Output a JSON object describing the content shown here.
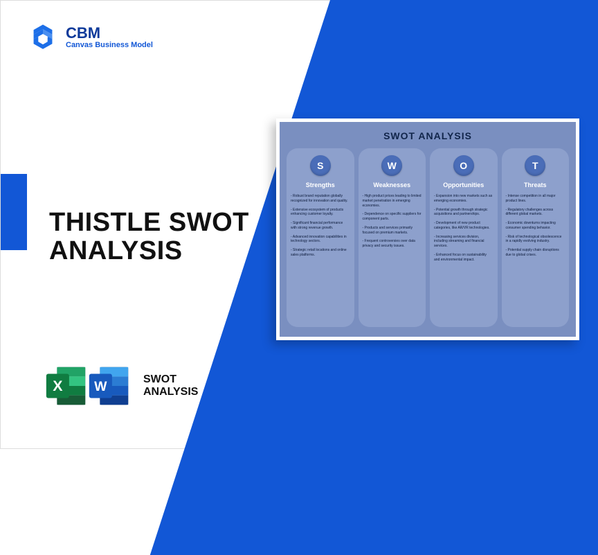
{
  "logo": {
    "title": "CBM",
    "subtitle": "Canvas Business Model"
  },
  "main_title": "THISTLE SWOT\nANALYSIS",
  "file_label": "SWOT\nANALYSIS",
  "colors": {
    "brand_blue": "#1257d6",
    "brand_dark": "#0e3a9a",
    "card_bg": "#7a8fc0",
    "col_bg": "#8da0cc",
    "badge_bg": "#4a6db8",
    "excel_green_dark": "#107c41",
    "excel_green_light": "#21a366",
    "word_blue_dark": "#103f91",
    "word_blue_light": "#2b7cd3"
  },
  "swot": {
    "title": "SWOT ANALYSIS",
    "columns": [
      {
        "letter": "S",
        "heading": "Strengths",
        "items": [
          "- Robust brand reputation globally recognized for innovation and quality.",
          "- Extensive ecosystem of products enhancing customer loyalty.",
          "- Significant financial performance with strong revenue growth.",
          "- Advanced innovation capabilities in technology sectors.",
          "- Strategic retail locations and online sales platforms."
        ]
      },
      {
        "letter": "W",
        "heading": "Weaknesses",
        "items": [
          "- High product prices leading to limited market penetration in emerging economies.",
          "- Dependence on specific suppliers for component parts.",
          "- Products and services primarily focused on premium markets.",
          "- Frequent controversies over data privacy and security issues."
        ]
      },
      {
        "letter": "O",
        "heading": "Opportunities",
        "items": [
          "- Expansion into new markets such as emerging economies.",
          "- Potential growth through strategic acquisitions and partnerships.",
          "- Development of new product categories, like AR/VR technologies.",
          "- Increasing services division, including streaming and financial services.",
          "- Enhanced focus on sustainability and environmental impact."
        ]
      },
      {
        "letter": "T",
        "heading": "Threats",
        "items": [
          "- Intense competition in all major product lines.",
          "- Regulatory challenges across different global markets.",
          "- Economic downturns impacting consumer spending behavior.",
          "- Risk of technological obsolescence in a rapidly evolving industry.",
          "- Potential supply chain disruptions due to global crises."
        ]
      }
    ]
  }
}
